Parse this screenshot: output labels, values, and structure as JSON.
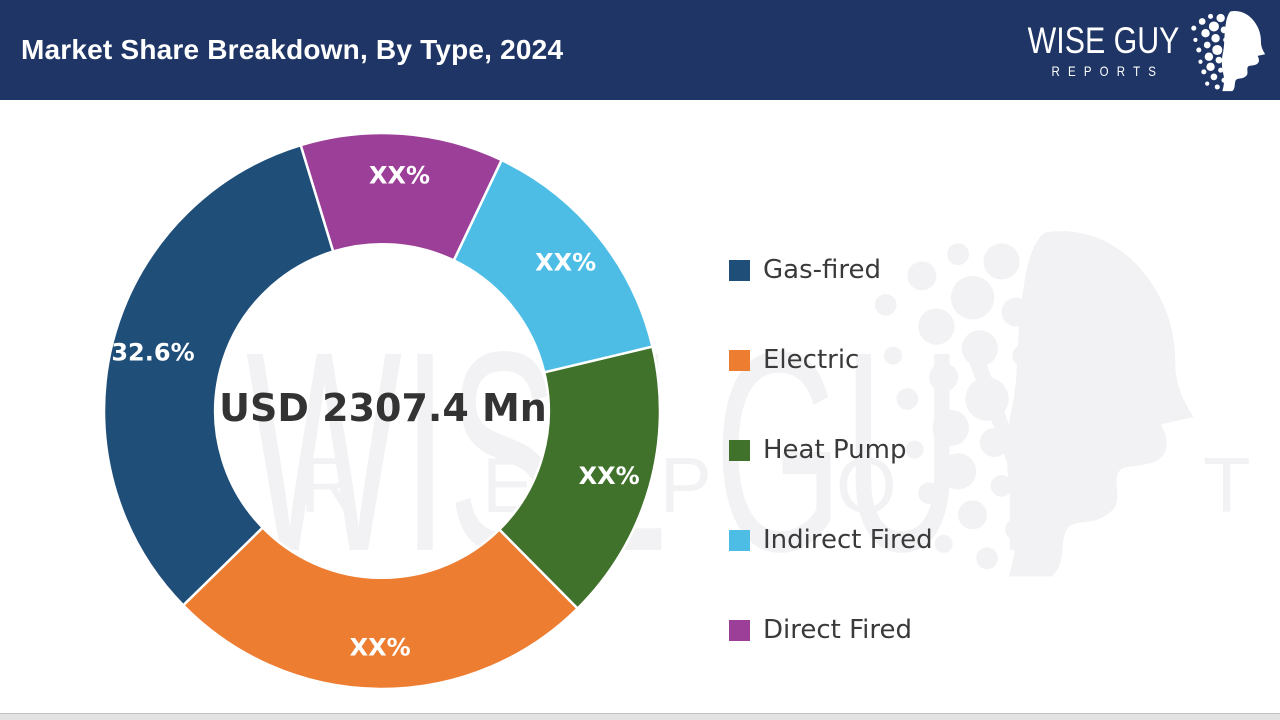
{
  "header": {
    "title": "Market Share Breakdown, By Type, 2024",
    "bg_color": "#1E3565",
    "logo": {
      "line1": "WISE GUY",
      "line2": "REPORTS"
    }
  },
  "watermark": {
    "line1": "WISE GUY",
    "line2": "REPORTS"
  },
  "center_label": "USD 2307.4 Mn",
  "chart_data": {
    "type": "pie",
    "donut": true,
    "title": "Market Share Breakdown, By Type, 2024",
    "center_text": "USD 2307.4 Mn",
    "start_angle_deg": 107,
    "direction": "counterclockwise",
    "inner_radius_ratio": 0.6,
    "label_distance_ratio": 0.85,
    "legend_position": "right",
    "series": [
      {
        "name": "Gas-fired",
        "value": 32.6,
        "label": "32.6%",
        "color": "#1F4E79"
      },
      {
        "name": "Electric",
        "value": 25.1,
        "label": "XX%",
        "color": "#ED7D31"
      },
      {
        "name": "Heat Pump",
        "value": 16.3,
        "label": "XX%",
        "color": "#40722B"
      },
      {
        "name": "Indirect Fired",
        "value": 14.2,
        "label": "XX%",
        "color": "#4DBDE6"
      },
      {
        "name": "Direct Fired",
        "value": 11.8,
        "label": "XX%",
        "color": "#9C3F98"
      }
    ]
  }
}
